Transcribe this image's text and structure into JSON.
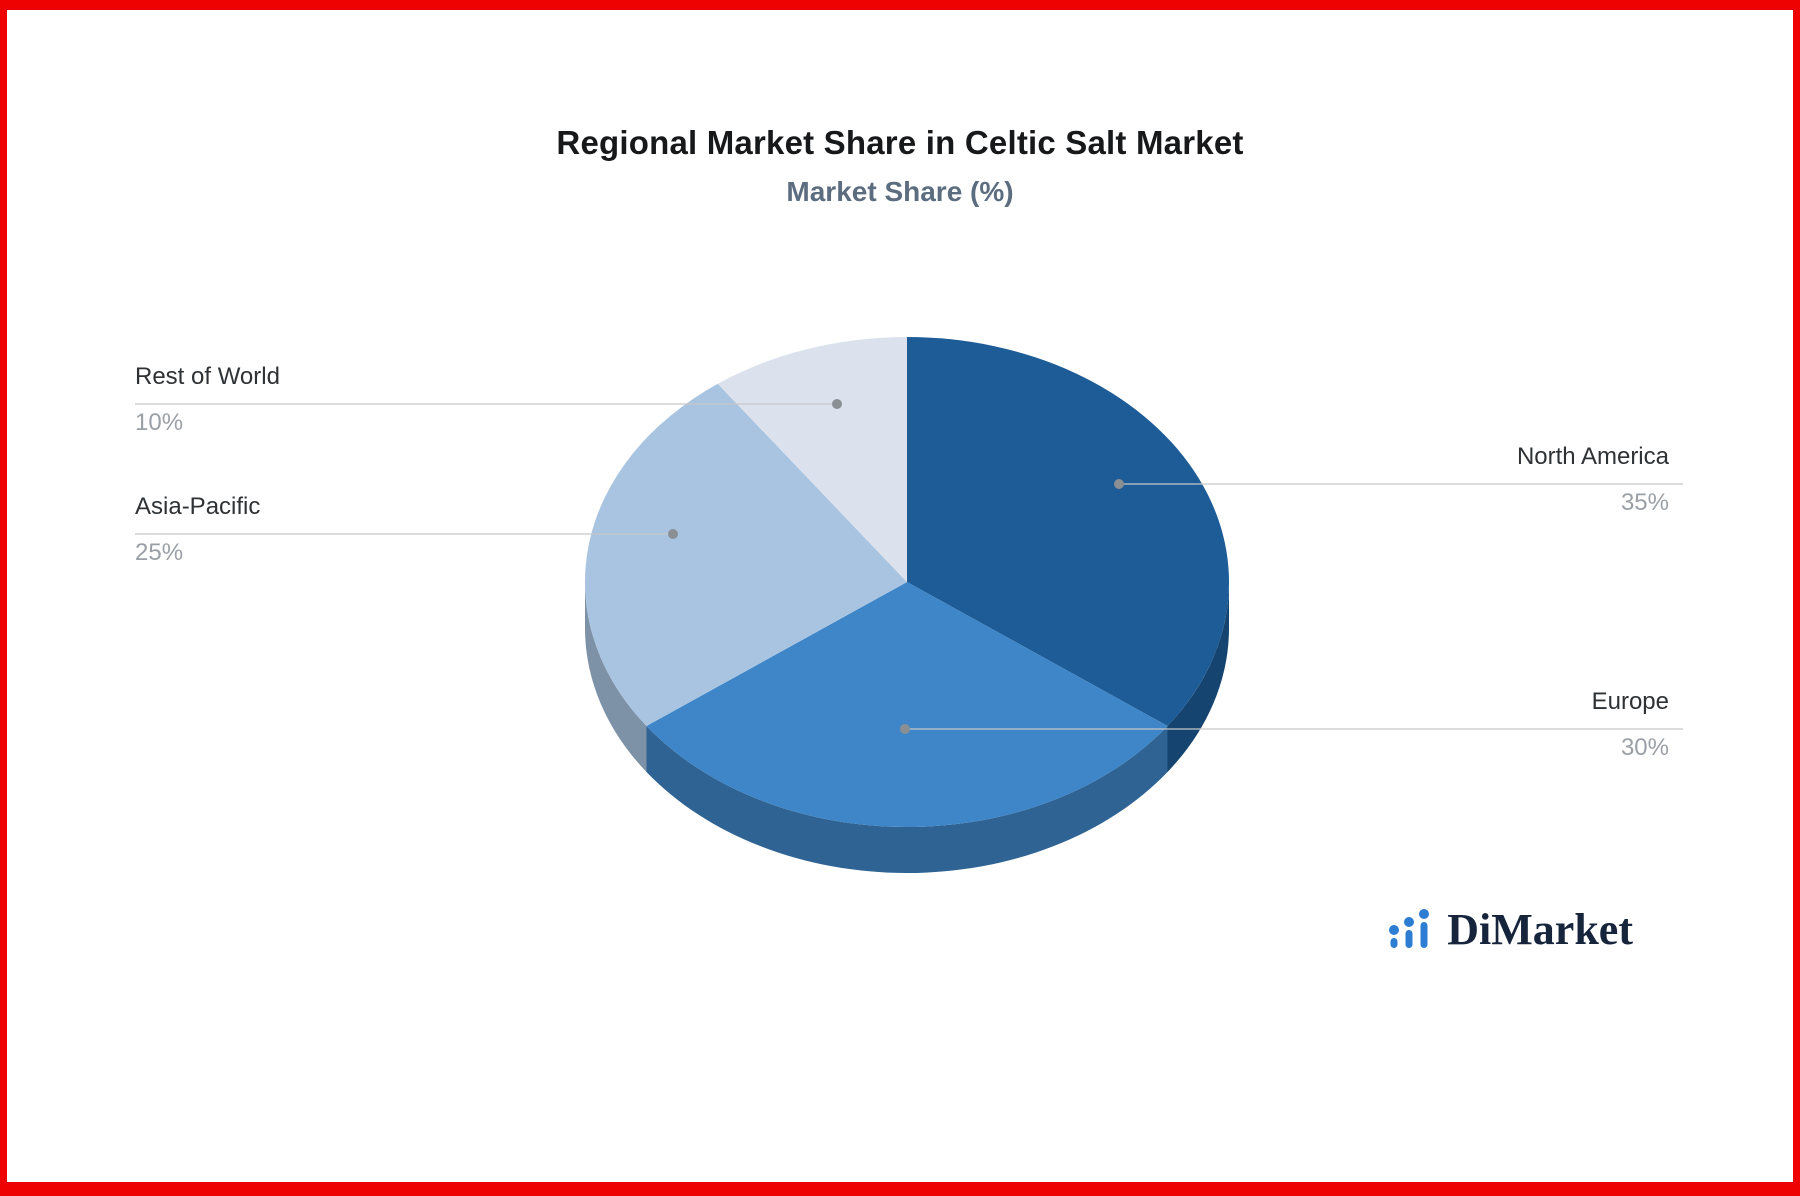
{
  "page": {
    "background": "#ffffff",
    "frame_color": "#ee0202"
  },
  "chart_data": {
    "type": "pie",
    "style": "3d",
    "title": "Regional Market Share in Celtic Salt Market",
    "subtitle": "Market Share (%)",
    "unit": "%",
    "legend_position": "none",
    "slices": [
      {
        "label": "North America",
        "value": 35,
        "value_label": "35%",
        "color": "#1d5c97"
      },
      {
        "label": "Europe",
        "value": 30,
        "value_label": "30%",
        "color": "#3e86c8"
      },
      {
        "label": "Asia-Pacific",
        "value": 25,
        "value_label": "25%",
        "color": "#a9c4e1"
      },
      {
        "label": "Rest of World",
        "value": 10,
        "value_label": "10%",
        "color": "#dbe2ee"
      }
    ],
    "callout_line_color": "#c8c8c8",
    "callout_dot_color": "#8a8f94"
  },
  "branding": {
    "logo_text": "DiMarket",
    "logo_icon": "bar-chart-icon",
    "logo_icon_color": "#2d7dd2",
    "logo_text_color": "#16253c"
  }
}
